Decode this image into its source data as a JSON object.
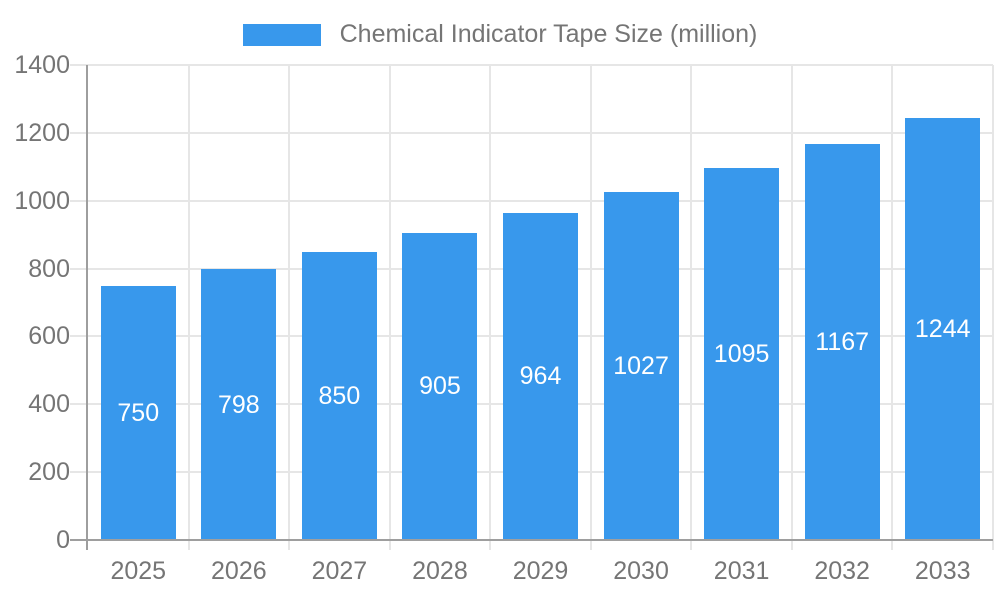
{
  "chart_data": {
    "type": "bar",
    "title": "Chemical Indicator Tape Size (million)",
    "legend_position": "top",
    "categories": [
      "2025",
      "2026",
      "2027",
      "2028",
      "2029",
      "2030",
      "2031",
      "2032",
      "2033"
    ],
    "values": [
      750,
      798,
      850,
      905,
      964,
      1027,
      1095,
      1167,
      1244
    ],
    "xlabel": "",
    "ylabel": "",
    "ylim": [
      0,
      1400
    ],
    "ytick_step": 200,
    "ytick_labels": [
      "0",
      "200",
      "400",
      "600",
      "800",
      "1000",
      "1200",
      "1400"
    ],
    "grid": "horizontal and vertical light gridlines",
    "bar_color": "#3898ec",
    "bar_value_label_color": "#ffffff",
    "axis_text_color": "#757575",
    "gridline_color": "#e6e6e6",
    "axis_line_color": "#9e9e9e"
  }
}
